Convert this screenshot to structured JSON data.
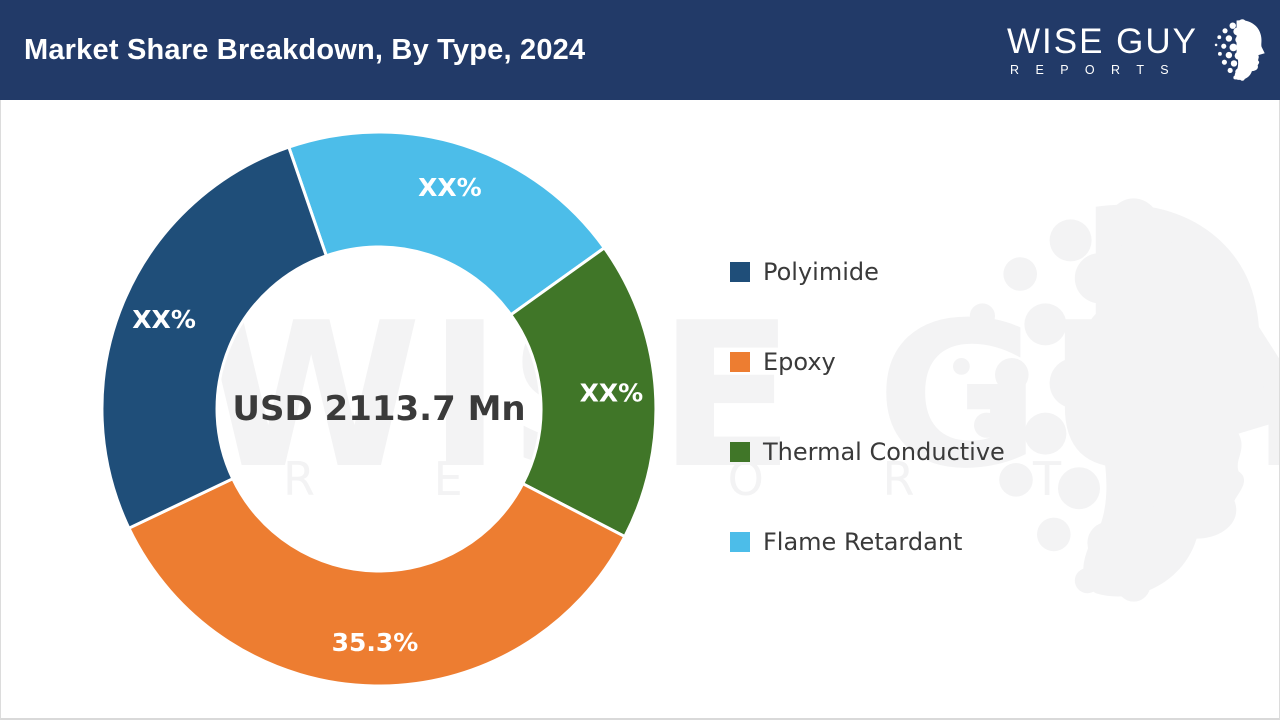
{
  "header": {
    "title": "Market Share Breakdown, By Type, 2024",
    "logo_line1": "WISE GUY",
    "logo_line2": "R E P O R T S"
  },
  "watermark": {
    "line1": "WISE GUY",
    "line2": "R E P O R T S"
  },
  "colors": {
    "header_background": "#223A68",
    "legend_text": "#3A3A3A",
    "center_text": "#3A3A3A",
    "segment_divider": "#FFFFFF"
  },
  "chart_data": {
    "type": "pie",
    "subtype": "donut",
    "title": "Market Share Breakdown, By Type, 2024",
    "center_label": "USD 2113.7 Mn",
    "total_value": 2113.7,
    "units": "USD Mn",
    "legend_position": "right",
    "start_angle_deg": -19,
    "clockwise": true,
    "segments": [
      {
        "name": "Polyimide",
        "color": "#1F4E79",
        "display_label": "XX%",
        "share_pct": 26.8
      },
      {
        "name": "Epoxy",
        "color": "#ED7D31",
        "display_label": "35.3%",
        "share_pct": 35.3
      },
      {
        "name": "Thermal Conductive",
        "color": "#407628",
        "display_label": "XX%",
        "share_pct": 17.5
      },
      {
        "name": "Flame Retardant",
        "color": "#4CBDE9",
        "display_label": "XX%",
        "share_pct": 20.4
      }
    ]
  }
}
